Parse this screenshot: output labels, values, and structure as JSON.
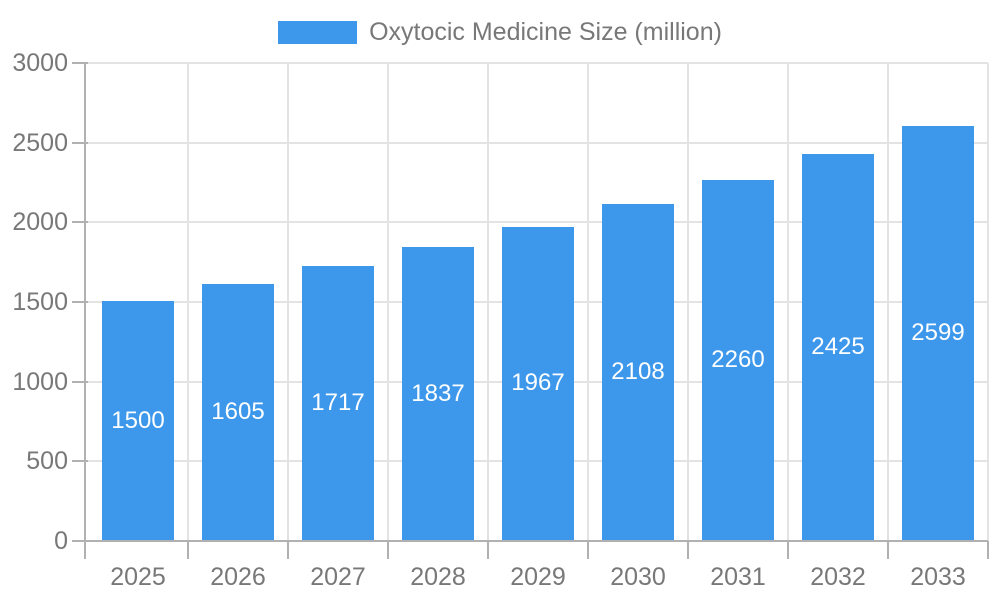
{
  "legend": {
    "label": "Oxytocic Medicine Size (million)"
  },
  "chart_data": {
    "type": "bar",
    "title": "",
    "categories": [
      "2025",
      "2026",
      "2027",
      "2028",
      "2029",
      "2030",
      "2031",
      "2032",
      "2033"
    ],
    "series": [
      {
        "name": "Oxytocic Medicine Size (million)",
        "values": [
          1500,
          1605,
          1717,
          1837,
          1967,
          2108,
          2260,
          2425,
          2599
        ]
      }
    ],
    "value_labels_shown": true,
    "value_label_position": "inside-center",
    "xlabel": "",
    "ylabel": "",
    "ylim": [
      0,
      3000
    ],
    "yticks": [
      0,
      500,
      1000,
      1500,
      2000,
      2500,
      3000
    ],
    "grid": true,
    "legend_position": "top-center",
    "colors": {
      "bar": "#3D98EC",
      "value_label": "#ffffff",
      "axis_label": "#787878",
      "legend_text": "#787878",
      "axis_line": "#b1b1b1",
      "gridline": "#e3e3e3",
      "background": "#ffffff"
    }
  }
}
